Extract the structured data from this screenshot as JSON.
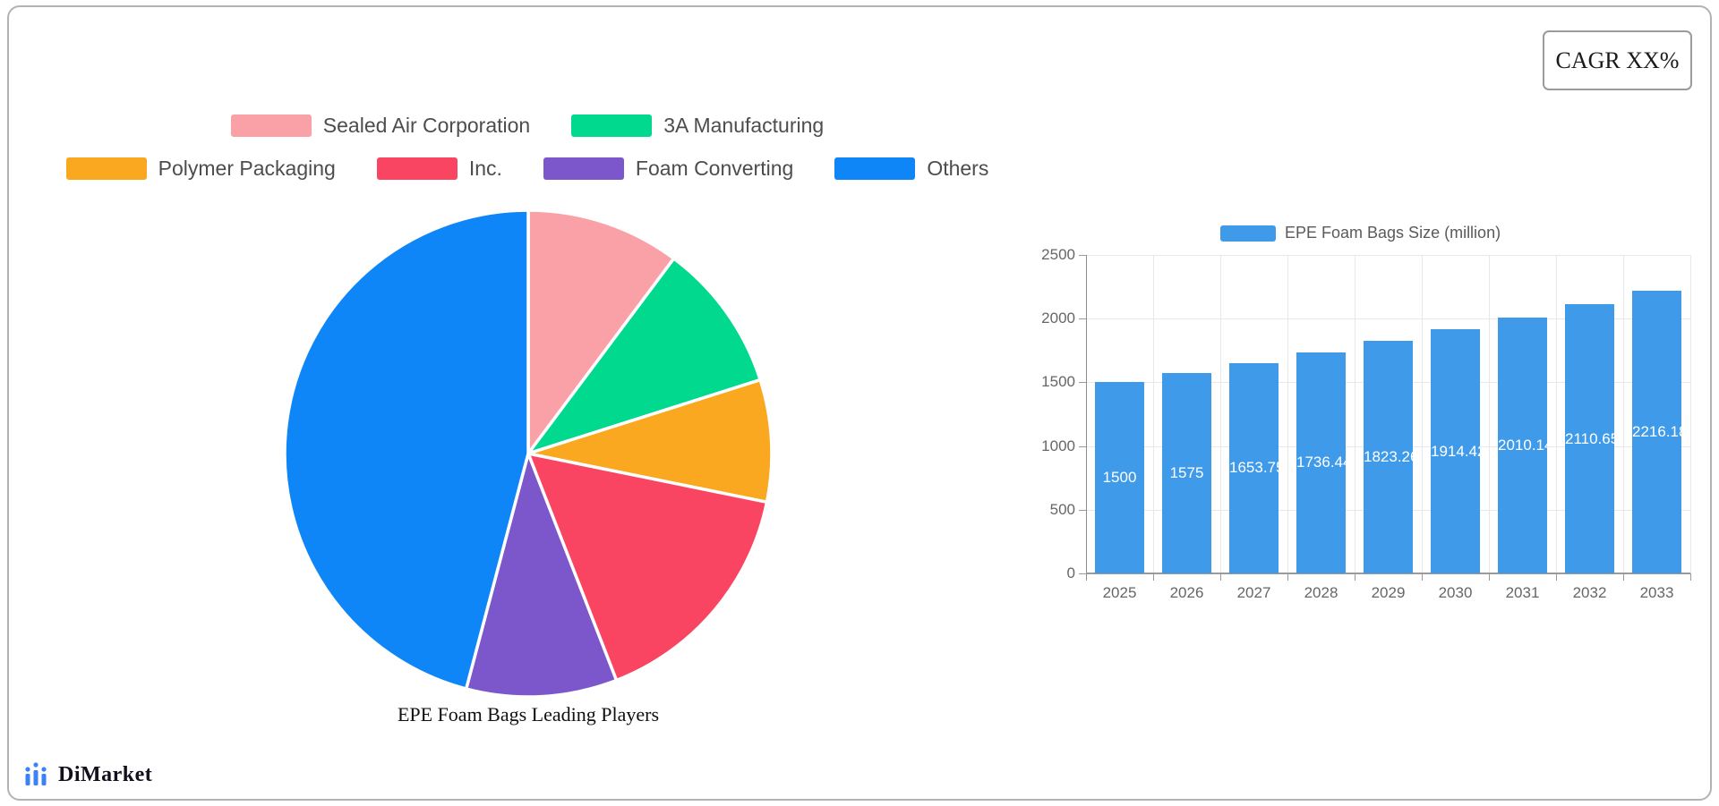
{
  "page": {
    "cagr_badge": "CAGR XX%",
    "brand_name": "DiMarket",
    "brand_color": "#3b82f6"
  },
  "chart_data": [
    {
      "type": "pie",
      "title": "EPE Foam Bags Leading Players",
      "labels": [
        "Sealed Air Corporation",
        "3A Manufacturing",
        "Polymer Packaging",
        "Inc.",
        "Foam Converting",
        "Others"
      ],
      "values_percent": [
        10.2,
        9.9,
        8.1,
        15.9,
        10.0,
        45.9
      ],
      "colors": [
        "#f9a1a7",
        "#00d98e",
        "#faa820",
        "#f94561",
        "#7b57cb",
        "#0f86f7"
      ],
      "legend_rows": [
        [
          0,
          1
        ],
        [
          2,
          3,
          4,
          5
        ]
      ],
      "legend_position": "top",
      "start_angle_deg": 0,
      "slice_gap_color": "#ffffff"
    },
    {
      "type": "bar",
      "legend": "EPE Foam Bags Size (million)",
      "categories": [
        "2025",
        "2026",
        "2027",
        "2028",
        "2029",
        "2030",
        "2031",
        "2032",
        "2033"
      ],
      "values": [
        1500,
        1575,
        1653.75,
        1736.44,
        1823.26,
        1914.42,
        2010.14,
        2110.65,
        2216.18
      ],
      "bar_color": "#3f9bea",
      "value_label_color": "#ffffff",
      "value_label_position": "inside-center",
      "ylim": [
        0,
        2500
      ],
      "yticks": [
        0,
        500,
        1000,
        1500,
        2000,
        2500
      ],
      "grid": true,
      "legend_position": "top"
    }
  ]
}
